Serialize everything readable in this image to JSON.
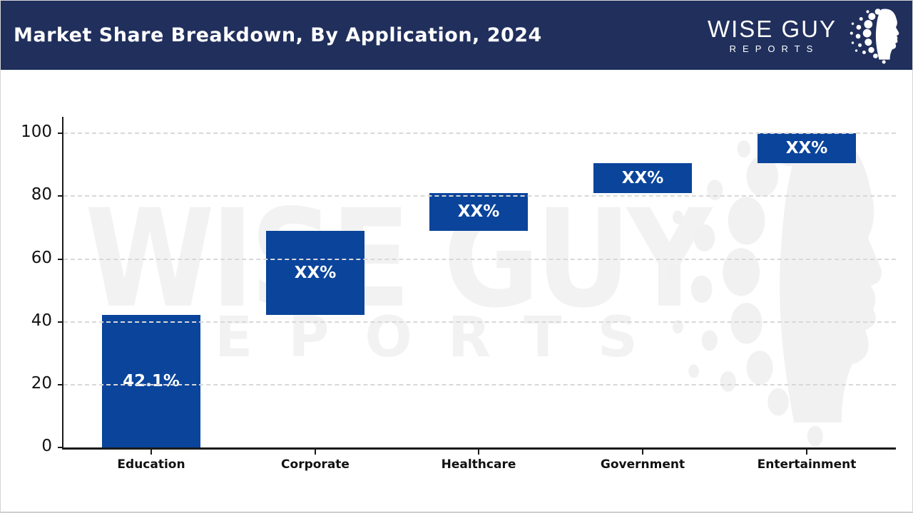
{
  "header": {
    "title": "Market Share Breakdown, By Application, 2024",
    "bg_color": "#202F5C",
    "logo": {
      "line1": "WISE GUY",
      "line2": "REPORTS",
      "icon": "head-profile-dots-icon"
    }
  },
  "watermark": {
    "line1": "WISE GUY",
    "line2": "REPORTS",
    "icon": "head-profile-dots-watermark"
  },
  "chart_data": {
    "type": "bar",
    "subtype": "floating-waterfall",
    "title": "Market Share Breakdown, By Application, 2024",
    "categories": [
      "Education",
      "Corporate",
      "Healthcare",
      "Government",
      "Entertainment"
    ],
    "segments": [
      {
        "category": "Education",
        "start": 0,
        "end": 42.1,
        "label": "42.1%"
      },
      {
        "category": "Corporate",
        "start": 42.1,
        "end": 69,
        "label": "XX%"
      },
      {
        "category": "Healthcare",
        "start": 69,
        "end": 81,
        "label": "XX%"
      },
      {
        "category": "Government",
        "start": 81,
        "end": 90.5,
        "label": "XX%"
      },
      {
        "category": "Entertainment",
        "start": 90.5,
        "end": 100,
        "label": "XX%"
      }
    ],
    "yticks": [
      0,
      20,
      40,
      60,
      80,
      100
    ],
    "ylim": [
      0,
      105
    ],
    "xlabel": "",
    "ylabel": "",
    "grid": "horizontal-dashed",
    "legend": "none",
    "bar_color": "#0A449B",
    "value_label_color": "#FFFFFF",
    "axis_color": "#1a1a1a",
    "grid_color": "#d8d8d8"
  }
}
